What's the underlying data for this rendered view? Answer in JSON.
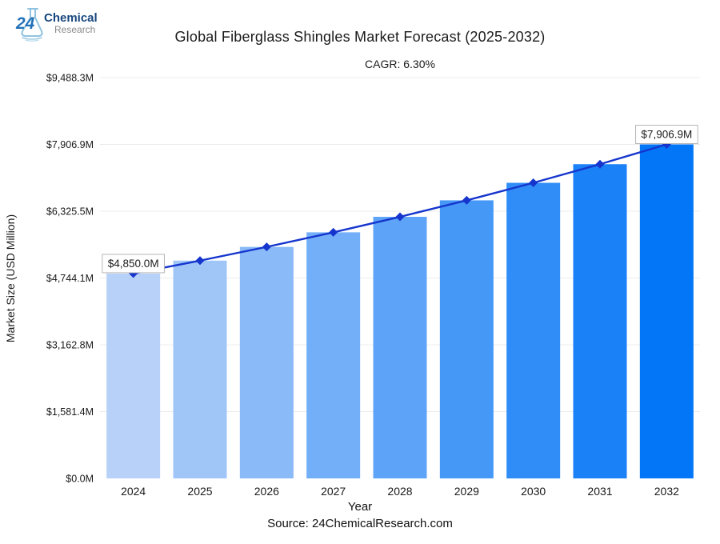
{
  "logo": {
    "number": "24",
    "name_top": "Chemical",
    "name_bottom": "Research"
  },
  "header": {
    "title": "Global Fiberglass Shingles Market Forecast (2025-2032)",
    "subtitle": "CAGR: 6.30%"
  },
  "axes": {
    "y_title": "Market Size (USD Million)",
    "x_title": "Year"
  },
  "footer": {
    "source": "Source: 24ChemicalResearch.com"
  },
  "colors": {
    "trend_line": "#1535cd",
    "grid_line": "#ececec",
    "annotation_border": "#b5b5b5",
    "annotation_bg": "#ffffff",
    "tick_text": "#1a1a1a"
  },
  "chart_data": {
    "type": "bar",
    "title": "Global Fiberglass Shingles Market Forecast (2025-2032)",
    "subtitle": "CAGR: 6.30%",
    "xlabel": "Year",
    "ylabel": "Market Size (USD Million)",
    "categories": [
      "2024",
      "2025",
      "2026",
      "2027",
      "2028",
      "2029",
      "2030",
      "2031",
      "2032"
    ],
    "series": [
      {
        "name": "Market Size (USD Million)",
        "type": "bar",
        "values": [
          4850.0,
          5155.6,
          5480.4,
          5825.6,
          6192.6,
          6582.8,
          6997.5,
          7438.3,
          7906.9
        ],
        "bar_colors": [
          "#b7d1f8",
          "#a0c6f8",
          "#8abaf8",
          "#73aff8",
          "#5da4f8",
          "#4698f7",
          "#308df7",
          "#1a81f7",
          "#0376f7"
        ]
      },
      {
        "name": "Trend",
        "type": "line",
        "values": [
          4850.0,
          5155.6,
          5480.4,
          5825.6,
          6192.6,
          6582.8,
          6997.5,
          7438.3,
          7906.9
        ],
        "color": "#1535cd",
        "marker": "diamond"
      }
    ],
    "ylim": [
      0,
      9488.3
    ],
    "y_ticks": [
      0.0,
      1581.4,
      3162.8,
      4744.1,
      6325.5,
      7906.9,
      9488.3
    ],
    "y_tick_labels": [
      "$0.0M",
      "$1,581.4M",
      "$3,162.8M",
      "$4,744.1M",
      "$6,325.5M",
      "$7,906.9M",
      "$9,488.3M"
    ],
    "grid": "horizontal",
    "legend": "none",
    "annotations": [
      {
        "category": "2024",
        "index": 0,
        "text": "$4,850.0M"
      },
      {
        "category": "2032",
        "index": 8,
        "text": "$7,906.9M"
      }
    ]
  }
}
